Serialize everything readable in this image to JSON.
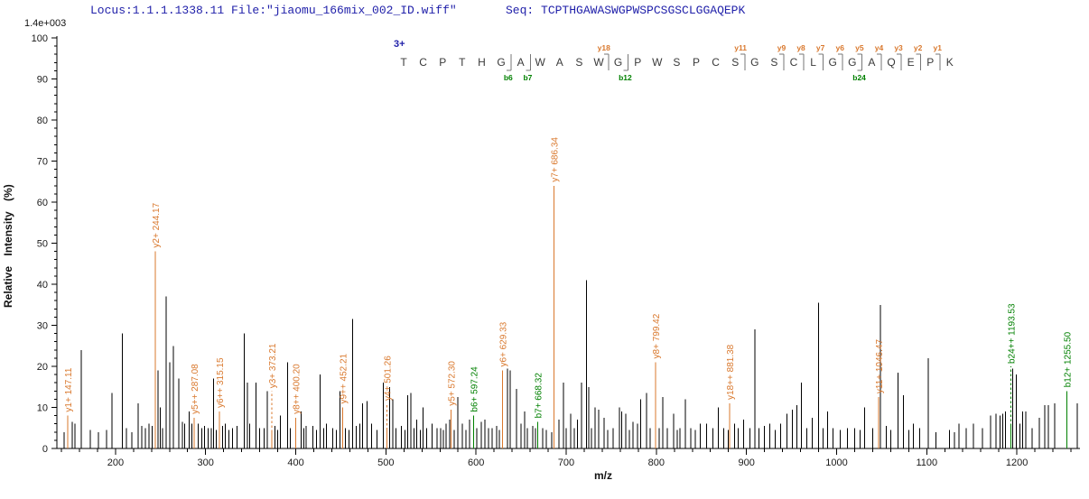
{
  "header": {
    "locus_file": "Locus:1.1.1.1338.11 File:\"jiaomu_166mix_002_ID.wiff\"",
    "seq_label": "Seq:",
    "seq_value": "TCPTHGAWASWGPWSPCSGSCLGGAQEPK",
    "max_intensity": "1.4e+003"
  },
  "chart_data": {
    "type": "bar",
    "subtype": "ms2-stick-spectrum",
    "title": "",
    "xlabel": "m/z",
    "ylabel": "Relative Intensity (%)",
    "xlim": [
      135,
      1270
    ],
    "ylim": [
      0,
      100
    ],
    "x_major_ticks": [
      200,
      300,
      400,
      500,
      600,
      700,
      800,
      900,
      1000,
      1100,
      1200
    ],
    "x_minor_step": 20,
    "y_major_ticks": [
      0,
      10,
      20,
      30,
      40,
      50,
      60,
      70,
      80,
      90,
      100
    ],
    "y_minor_step": 2,
    "grid": false,
    "legend": "none",
    "precursor_charge": "3+",
    "sequence": "TCPTHGAWASWGPWSPCSGSCLGGAQEPK",
    "ladder_y_ions": [
      {
        "label": "y18",
        "after": 11
      },
      {
        "label": "y11",
        "after": 18
      },
      {
        "label": "y9",
        "after": 20
      },
      {
        "label": "y8",
        "after": 21
      },
      {
        "label": "y7",
        "after": 22
      },
      {
        "label": "y6",
        "after": 23
      },
      {
        "label": "y5",
        "after": 24
      },
      {
        "label": "y4",
        "after": 25
      },
      {
        "label": "y3",
        "after": 26
      },
      {
        "label": "y2",
        "after": 27
      },
      {
        "label": "y1",
        "after": 28
      }
    ],
    "ladder_b_ions": [
      {
        "label": "b6",
        "after": 6
      },
      {
        "label": "b7",
        "after": 7
      },
      {
        "label": "b12",
        "after": 12
      },
      {
        "label": "b24",
        "after": 24
      }
    ],
    "annotated_peaks": [
      {
        "label": "y1+ 147.11",
        "mz": 147.11,
        "intensity": 8,
        "ion": "y"
      },
      {
        "label": "y2+ 244.17",
        "mz": 244.17,
        "intensity": 48,
        "ion": "y"
      },
      {
        "label": "y5++ 287.08",
        "mz": 287.08,
        "intensity": 7.5,
        "ion": "y"
      },
      {
        "label": "y6++ 315.15",
        "mz": 315.15,
        "intensity": 9,
        "ion": "y"
      },
      {
        "label": "y3+ 373.21",
        "mz": 373.21,
        "intensity": 4,
        "ion": "y",
        "label_from": 14
      },
      {
        "label": "y8++ 400.20",
        "mz": 400.2,
        "intensity": 7.5,
        "ion": "y"
      },
      {
        "label": "y9++ 452.21",
        "mz": 452.21,
        "intensity": 10,
        "ion": "y"
      },
      {
        "label": "y4+ 501.26",
        "mz": 501.26,
        "intensity": 4.5,
        "ion": "y",
        "label_from": 11
      },
      {
        "label": "y5+ 572.30",
        "mz": 572.3,
        "intensity": 9.5,
        "ion": "y"
      },
      {
        "label": "b6+ 597.24",
        "mz": 597.24,
        "intensity": 8,
        "ion": "b"
      },
      {
        "label": "y6+ 629.33",
        "mz": 629.33,
        "intensity": 19,
        "ion": "y"
      },
      {
        "label": "b7+ 668.32",
        "mz": 668.32,
        "intensity": 6.5,
        "ion": "b"
      },
      {
        "label": "y7+ 686.34",
        "mz": 686.34,
        "intensity": 64,
        "ion": "y"
      },
      {
        "label": "y8+ 799.42",
        "mz": 799.42,
        "intensity": 21,
        "ion": "y"
      },
      {
        "label": "y18++ 881.38",
        "mz": 881.38,
        "intensity": 11,
        "ion": "y"
      },
      {
        "label": "y11+ 1046.47",
        "mz": 1046.47,
        "intensity": 12.5,
        "ion": "y"
      },
      {
        "label": "b24++ 1193.53",
        "mz": 1193.53,
        "intensity": 5.5,
        "ion": "b",
        "label_from": 20
      },
      {
        "label": "b12+ 1255.50",
        "mz": 1255.5,
        "intensity": 14,
        "ion": "b"
      }
    ],
    "peaks": [
      [
        143,
        4
      ],
      [
        152,
        6.5
      ],
      [
        155,
        6
      ],
      [
        162,
        24
      ],
      [
        172,
        4.5
      ],
      [
        181,
        4
      ],
      [
        190,
        4.5
      ],
      [
        196,
        13.5
      ],
      [
        207.5,
        28
      ],
      [
        212,
        5
      ],
      [
        218,
        4
      ],
      [
        225,
        11
      ],
      [
        229,
        5.5
      ],
      [
        233,
        5
      ],
      [
        237,
        6
      ],
      [
        240.5,
        5.5
      ],
      [
        247,
        19
      ],
      [
        249.5,
        10
      ],
      [
        252,
        5
      ],
      [
        256,
        37
      ],
      [
        260,
        21
      ],
      [
        264,
        25
      ],
      [
        270,
        17
      ],
      [
        274,
        6.5
      ],
      [
        277,
        6
      ],
      [
        282,
        9
      ],
      [
        285,
        6
      ],
      [
        292,
        6
      ],
      [
        296,
        5
      ],
      [
        299,
        5.5
      ],
      [
        303,
        5
      ],
      [
        306.5,
        5
      ],
      [
        309,
        17
      ],
      [
        312,
        4.5
      ],
      [
        319,
        5.5
      ],
      [
        322,
        6
      ],
      [
        326,
        4.5
      ],
      [
        330,
        5
      ],
      [
        335,
        5.5
      ],
      [
        343,
        28
      ],
      [
        346.5,
        16
      ],
      [
        349,
        6
      ],
      [
        356,
        16
      ],
      [
        360,
        5
      ],
      [
        365,
        5
      ],
      [
        368.5,
        14
      ],
      [
        377,
        5.5
      ],
      [
        380,
        4.5
      ],
      [
        383,
        8
      ],
      [
        391,
        21
      ],
      [
        394,
        5
      ],
      [
        406,
        9
      ],
      [
        409,
        5
      ],
      [
        411.5,
        5.5
      ],
      [
        419,
        5.5
      ],
      [
        423,
        4.5
      ],
      [
        427,
        18
      ],
      [
        431,
        5
      ],
      [
        434,
        6
      ],
      [
        441,
        5
      ],
      [
        445,
        4.5
      ],
      [
        449,
        14
      ],
      [
        455,
        5
      ],
      [
        459,
        4.5
      ],
      [
        463,
        31.5
      ],
      [
        467,
        5.5
      ],
      [
        471,
        6
      ],
      [
        474,
        11
      ],
      [
        479,
        11.5
      ],
      [
        484,
        6
      ],
      [
        490,
        4.5
      ],
      [
        497,
        16
      ],
      [
        504,
        15
      ],
      [
        507.5,
        12
      ],
      [
        511,
        5
      ],
      [
        517,
        5.5
      ],
      [
        521,
        4.5
      ],
      [
        524,
        13
      ],
      [
        527.5,
        13.5
      ],
      [
        531,
        5
      ],
      [
        534,
        7
      ],
      [
        538,
        4.5
      ],
      [
        541,
        10
      ],
      [
        545,
        5
      ],
      [
        551,
        6
      ],
      [
        556.5,
        5
      ],
      [
        561,
        5
      ],
      [
        564,
        4.5
      ],
      [
        567,
        6
      ],
      [
        571,
        7
      ],
      [
        576,
        4.5
      ],
      [
        580,
        12.5
      ],
      [
        585,
        6
      ],
      [
        589,
        4.5
      ],
      [
        593,
        7
      ],
      [
        601,
        5
      ],
      [
        606,
        6.5
      ],
      [
        610,
        7
      ],
      [
        614,
        5
      ],
      [
        618,
        5
      ],
      [
        623,
        5.5
      ],
      [
        626,
        4.5
      ],
      [
        635,
        19.5
      ],
      [
        638,
        19
      ],
      [
        645,
        14.5
      ],
      [
        650,
        6
      ],
      [
        654,
        9
      ],
      [
        657,
        5
      ],
      [
        663,
        5.5
      ],
      [
        666,
        5
      ],
      [
        674,
        5
      ],
      [
        678,
        4.5
      ],
      [
        684,
        4
      ],
      [
        692,
        7
      ],
      [
        697,
        16
      ],
      [
        700,
        5
      ],
      [
        705,
        8.5
      ],
      [
        709,
        5
      ],
      [
        712.5,
        7
      ],
      [
        717,
        16
      ],
      [
        722.5,
        41
      ],
      [
        725,
        15
      ],
      [
        728,
        5
      ],
      [
        732,
        10
      ],
      [
        736,
        9.5
      ],
      [
        742,
        7.5
      ],
      [
        746,
        4.5
      ],
      [
        752,
        5
      ],
      [
        759,
        10
      ],
      [
        761.5,
        9
      ],
      [
        766,
        8.5
      ],
      [
        770,
        4.5
      ],
      [
        774,
        6.5
      ],
      [
        779,
        6
      ],
      [
        782.5,
        12
      ],
      [
        789,
        13.5
      ],
      [
        793,
        5
      ],
      [
        803,
        5
      ],
      [
        807,
        12.5
      ],
      [
        812,
        5
      ],
      [
        819,
        8.5
      ],
      [
        823,
        4.5
      ],
      [
        826,
        5
      ],
      [
        832,
        12
      ],
      [
        838,
        5
      ],
      [
        843,
        4.5
      ],
      [
        849,
        6
      ],
      [
        856,
        6
      ],
      [
        863,
        5
      ],
      [
        869,
        10
      ],
      [
        875,
        5
      ],
      [
        880,
        4.5
      ],
      [
        887,
        6
      ],
      [
        891,
        5
      ],
      [
        897,
        7
      ],
      [
        904,
        5
      ],
      [
        909.5,
        29
      ],
      [
        914,
        5
      ],
      [
        920,
        5.5
      ],
      [
        926,
        6
      ],
      [
        932,
        4.5
      ],
      [
        938,
        6
      ],
      [
        945,
        8.5
      ],
      [
        951,
        9.5
      ],
      [
        956,
        10.5
      ],
      [
        961,
        16
      ],
      [
        967,
        5
      ],
      [
        973,
        7.5
      ],
      [
        980,
        35.5
      ],
      [
        985,
        5
      ],
      [
        990,
        9
      ],
      [
        996,
        5
      ],
      [
        1004,
        4.5
      ],
      [
        1012,
        5
      ],
      [
        1020,
        5
      ],
      [
        1026,
        4.5
      ],
      [
        1031,
        10
      ],
      [
        1040,
        5
      ],
      [
        1048.6,
        35
      ],
      [
        1055,
        5.5
      ],
      [
        1060,
        4.5
      ],
      [
        1068,
        18.5
      ],
      [
        1074,
        13
      ],
      [
        1080,
        4.5
      ],
      [
        1085,
        6
      ],
      [
        1092,
        5
      ],
      [
        1101.7,
        22
      ],
      [
        1110,
        4
      ],
      [
        1125,
        4.5
      ],
      [
        1131,
        4
      ],
      [
        1136,
        6
      ],
      [
        1144,
        5
      ],
      [
        1152,
        6
      ],
      [
        1161.8,
        5
      ],
      [
        1170.7,
        8
      ],
      [
        1176.6,
        8.5
      ],
      [
        1181.5,
        8
      ],
      [
        1184.5,
        8.5
      ],
      [
        1187.4,
        9
      ],
      [
        1195.4,
        19.5
      ],
      [
        1199.3,
        18
      ],
      [
        1203.3,
        6
      ],
      [
        1206.2,
        9
      ],
      [
        1210,
        9
      ],
      [
        1217,
        5
      ],
      [
        1225,
        7.5
      ],
      [
        1231,
        10.5
      ],
      [
        1235,
        10.5
      ],
      [
        1242,
        11
      ],
      [
        1267,
        11
      ]
    ],
    "colors": {
      "y_ion": "#d9782d",
      "b_ion": "#008000",
      "peak": "#000000",
      "axis": "#000000",
      "header_blue": "#2121aa",
      "ladder_letter": "#3a3a3a",
      "ladder_divider": "#777777",
      "charge_blue": "#2121aa"
    }
  }
}
